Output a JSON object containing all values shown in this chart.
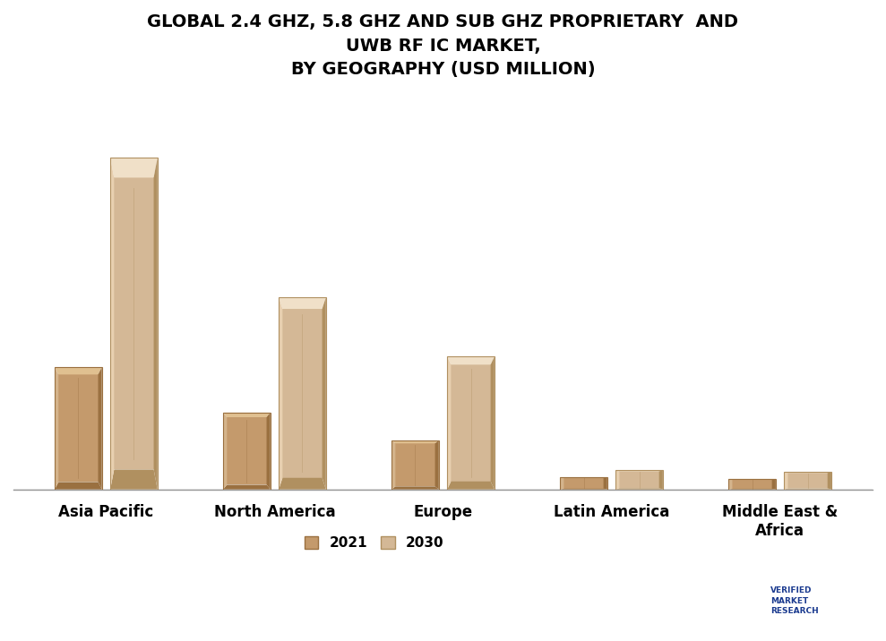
{
  "title": "GLOBAL 2.4 GHZ, 5.8 GHZ AND SUB GHZ PROPRIETARY  AND\nUWB RF IC MARKET,\nBY GEOGRAPHY (USD MILLION)",
  "categories": [
    "Asia Pacific",
    "North America",
    "Europe",
    "Latin America",
    "Middle East &\nAfrica"
  ],
  "values_2021": [
    3.5,
    2.2,
    1.4,
    0.35,
    0.3
  ],
  "values_2030": [
    9.5,
    5.5,
    3.8,
    0.55,
    0.5
  ],
  "color_2021_main": "#c49a6c",
  "color_2021_light": "#d4b48c",
  "color_2021_dark": "#9a7040",
  "color_2021_highlight": "#e0c090",
  "color_2030_main": "#d4b896",
  "color_2030_light": "#e8d0b0",
  "color_2030_dark": "#b09060",
  "color_2030_highlight": "#f0e0c8",
  "bar_width": 0.28,
  "bar_gap": 0.05,
  "background_color": "#ffffff",
  "title_fontsize": 14,
  "legend_labels": [
    "2021",
    "2030"
  ],
  "ylim": [
    0,
    11
  ],
  "bevel": 0.025
}
